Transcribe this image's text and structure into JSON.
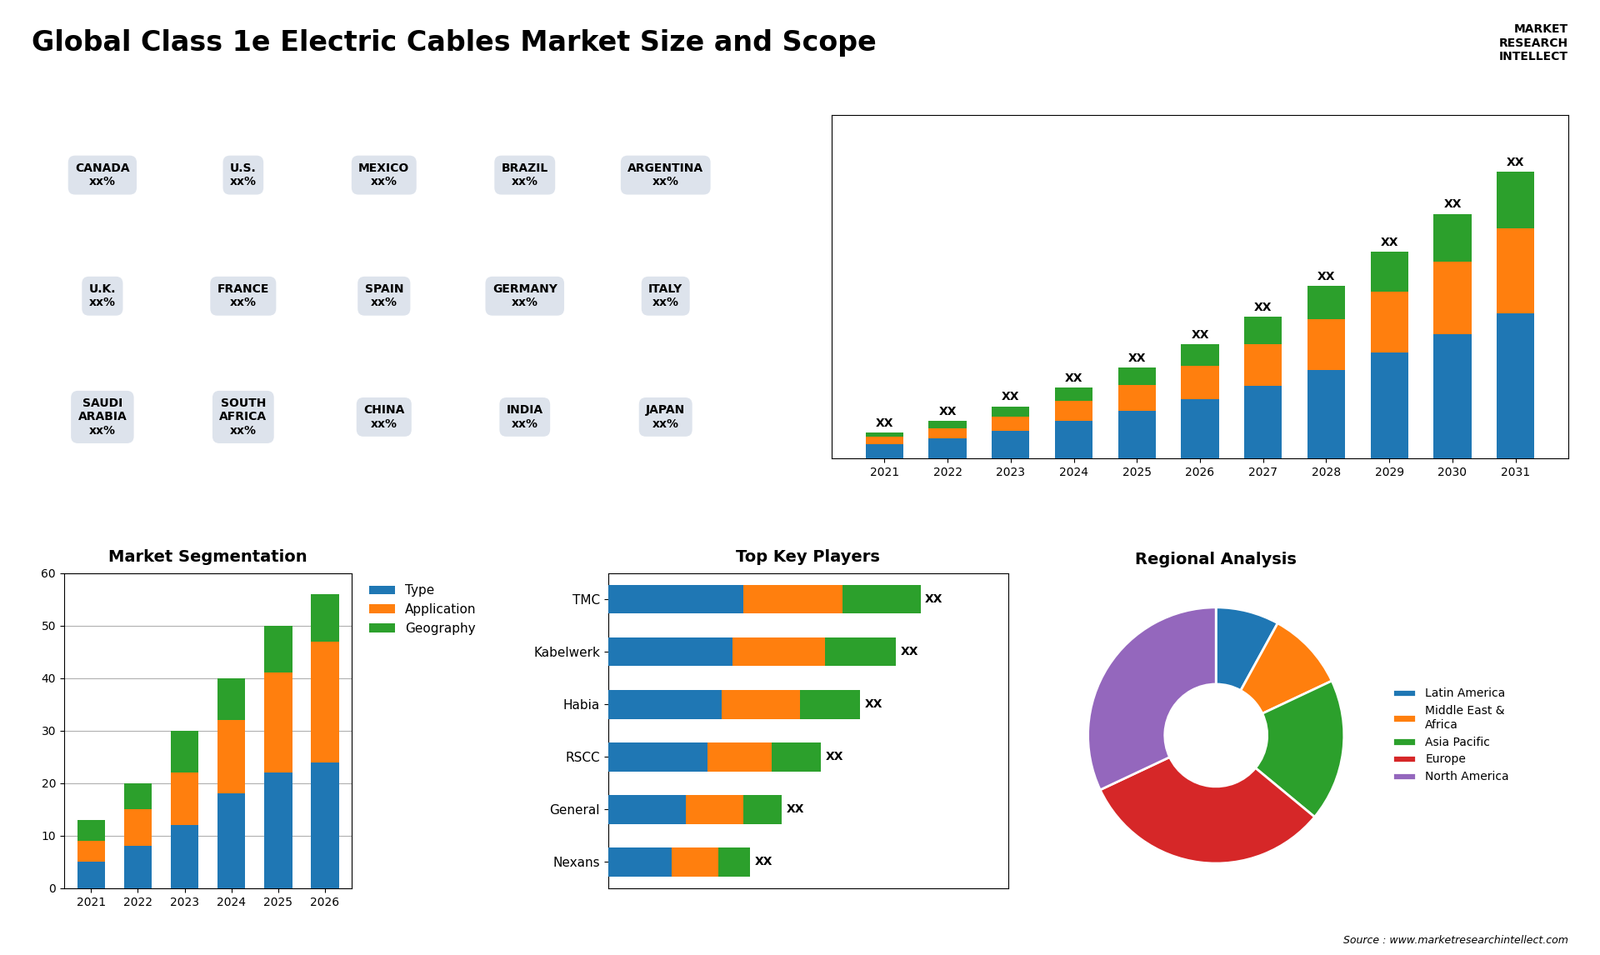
{
  "title": "Global Class 1e Electric Cables Market Size and Scope",
  "annotations": [
    "MARKET\nRESEARCH\nINTELLECT",
    "Source : www.marketresearchintellect.com"
  ],
  "chart_data": [
    {
      "type": "map",
      "annotations": [
        "CANADA\nxx%",
        "U.S.\nxx%",
        "MEXICO\nxx%",
        "BRAZIL\nxx%",
        "ARGENTINA\nxx%",
        "U.K.\nxx%",
        "FRANCE\nxx%",
        "SPAIN\nxx%",
        "GERMANY\nxx%",
        "ITALY\nxx%",
        "SAUDI\nARABIA\nxx%",
        "SOUTH\nAFRICA\nxx%",
        "CHINA\nxx%",
        "INDIA\nxx%",
        "JAPAN\nxx%"
      ]
    },
    {
      "type": "bar",
      "stacked": true,
      "categories": [
        "2021",
        "2022",
        "2023",
        "2024",
        "2025",
        "2026",
        "2027",
        "2028",
        "2029",
        "2030",
        "2031"
      ],
      "series": [
        {
          "values": [
            1.0,
            1.4,
            1.9,
            2.6,
            3.3,
            4.1,
            5.0,
            6.1,
            7.3,
            8.6,
            10.0
          ]
        },
        {
          "values": [
            0.5,
            0.7,
            1.0,
            1.4,
            1.8,
            2.3,
            2.9,
            3.5,
            4.2,
            5.0,
            5.9
          ]
        },
        {
          "values": [
            0.3,
            0.5,
            0.7,
            0.9,
            1.2,
            1.5,
            1.9,
            2.3,
            2.8,
            3.3,
            3.9
          ]
        }
      ],
      "ylim": [
        0,
        23.76
      ],
      "tick_labels": "x",
      "data_labels": true,
      "value_labels": [
        "XX",
        "XX",
        "XX",
        "XX",
        "XX",
        "XX",
        "XX",
        "XX",
        "XX",
        "XX",
        "XX"
      ]
    },
    {
      "type": "bar",
      "stacked": true,
      "title": "Market Segmentation",
      "categories": [
        "2021",
        "2022",
        "2023",
        "2024",
        "2025",
        "2026"
      ],
      "series": [
        {
          "name": "Type",
          "values": [
            5,
            8,
            12,
            18,
            22,
            24
          ]
        },
        {
          "name": "Application",
          "values": [
            4,
            7,
            10,
            14,
            19,
            23
          ]
        },
        {
          "name": "Geography",
          "values": [
            4,
            5,
            8,
            8,
            9,
            9
          ]
        }
      ],
      "ylim": [
        0,
        60
      ],
      "yticks": [
        0,
        10,
        20,
        30,
        40,
        50,
        60
      ],
      "grid": true,
      "legend": "upper left"
    },
    {
      "type": "bar",
      "stacked": true,
      "orientation": "horizontal",
      "title": "Top Key Players",
      "categories": [
        "TMC",
        "Kabelwerk",
        "Habia",
        "RSCC",
        "General",
        "Nexans"
      ],
      "series": [
        {
          "values": [
            0.38,
            0.35,
            0.32,
            0.28,
            0.22,
            0.18
          ]
        },
        {
          "values": [
            0.28,
            0.26,
            0.22,
            0.18,
            0.16,
            0.13
          ]
        },
        {
          "values": [
            0.22,
            0.2,
            0.17,
            0.14,
            0.11,
            0.09
          ]
        }
      ],
      "xlim": [
        0,
        1.1264
      ],
      "tick_labels": "y",
      "data_labels": true,
      "value_labels": [
        "XX",
        "XX",
        "XX",
        "XX",
        "XX",
        "XX"
      ]
    },
    {
      "type": "pie",
      "title": "Regional Analysis",
      "categories": [
        "Latin America",
        "Middle East &\nAfrica",
        "Asia Pacific",
        "Europe",
        "North America"
      ],
      "values": [
        8,
        10,
        18,
        32,
        32
      ],
      "legend": "center left"
    }
  ]
}
